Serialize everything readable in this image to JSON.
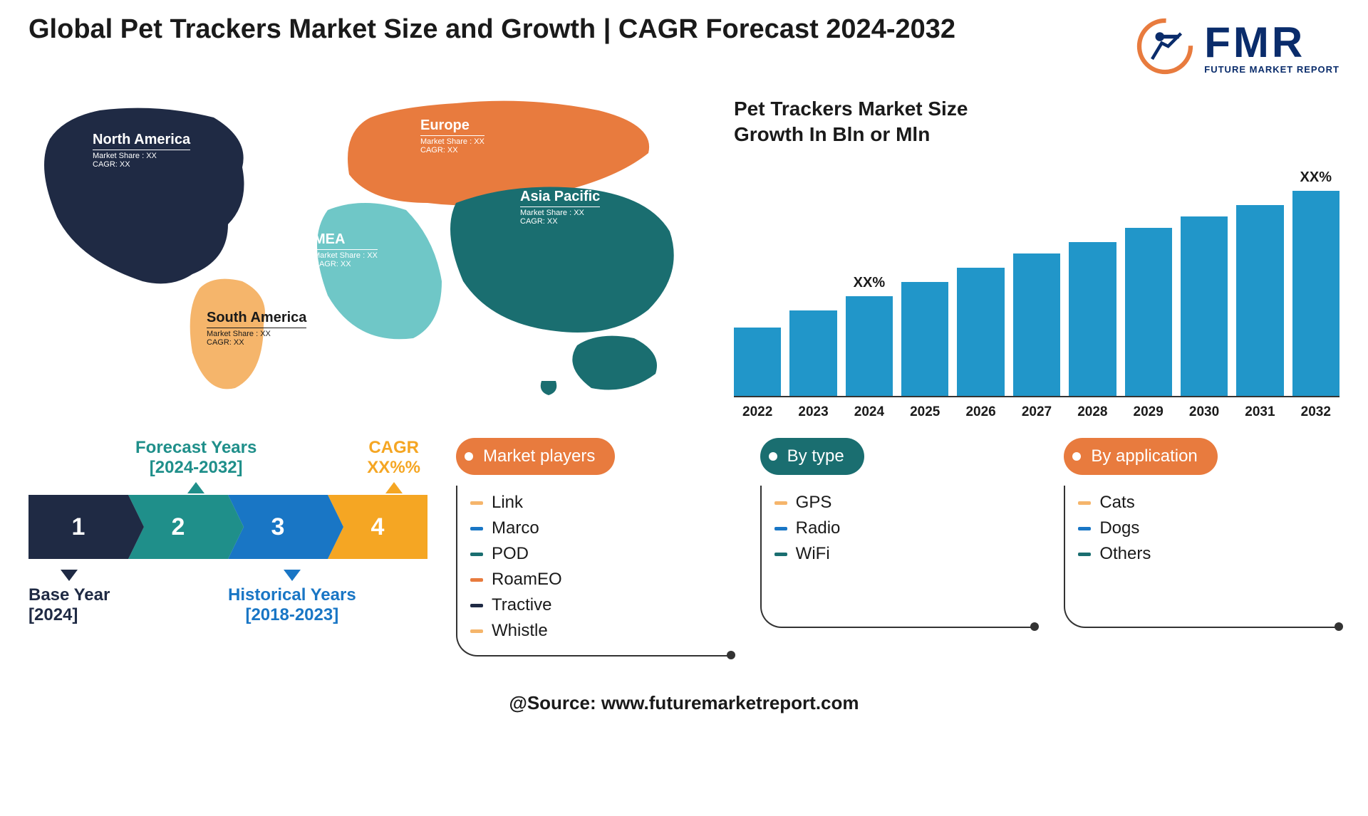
{
  "title": "Global Pet Trackers  Market Size and Growth | CAGR Forecast 2024-2032",
  "logo": {
    "fmr": "FMR",
    "sub": "FUTURE MARKET REPORT"
  },
  "map": {
    "regions": {
      "na": {
        "name": "North America",
        "ms": "Market Share : XX",
        "cagr": "CAGR: XX",
        "color": "#1f2a44"
      },
      "sa": {
        "name": "South America",
        "ms": "Market Share : XX",
        "cagr": "CAGR: XX",
        "color": "#f5b56b"
      },
      "eu": {
        "name": "Europe",
        "ms": "Market Share : XX",
        "cagr": "CAGR: XX",
        "color": "#e87b3e"
      },
      "mea": {
        "name": "MEA",
        "ms": "Market Share : XX",
        "cagr": "CAGR: XX",
        "color": "#6fc7c7"
      },
      "ap": {
        "name": "Asia Pacific",
        "ms": "Market Share : XX",
        "cagr": "CAGR: XX",
        "color": "#1a6e70"
      }
    }
  },
  "chart": {
    "title": "Pet Trackers Market Size Growth In Bln or Mln",
    "type": "bar",
    "bar_color": "#2196c9",
    "categories": [
      "2022",
      "2023",
      "2024",
      "2025",
      "2026",
      "2027",
      "2028",
      "2029",
      "2030",
      "2031",
      "2032"
    ],
    "values": [
      120,
      150,
      175,
      200,
      225,
      250,
      270,
      295,
      315,
      335,
      360
    ],
    "ylim": [
      0,
      400
    ],
    "callouts": {
      "2024": "XX%",
      "2032": "XX%"
    }
  },
  "timeline": {
    "forecast": {
      "label": "Forecast Years",
      "range": "[2024-2032]",
      "color": "#1f8f8a"
    },
    "cagr": {
      "label": "CAGR",
      "value": "XX%%",
      "color": "#f5a623"
    },
    "base": {
      "label": "Base Year",
      "range": "[2024]",
      "color": "#1f2a44"
    },
    "hist": {
      "label": "Historical Years",
      "range": "[2018-2023]",
      "color": "#1976c5"
    },
    "steps": [
      {
        "n": "1",
        "color": "#1f2a44"
      },
      {
        "n": "2",
        "color": "#1f8f8a"
      },
      {
        "n": "3",
        "color": "#1976c5"
      },
      {
        "n": "4",
        "color": "#f5a623"
      }
    ]
  },
  "categories": [
    {
      "title": "Market players",
      "header_color": "#e87b3e",
      "items": [
        {
          "label": "Link",
          "tick": "#f5b56b"
        },
        {
          "label": "Marco",
          "tick": "#1976c5"
        },
        {
          "label": "POD",
          "tick": "#1a6e70"
        },
        {
          "label": "RoamEO",
          "tick": "#e87b3e"
        },
        {
          "label": "Tractive",
          "tick": "#1f2a44"
        },
        {
          "label": "Whistle",
          "tick": "#f5b56b"
        }
      ]
    },
    {
      "title": "By type",
      "header_color": "#1a6e70",
      "items": [
        {
          "label": "GPS",
          "tick": "#f5b56b"
        },
        {
          "label": "Radio",
          "tick": "#1976c5"
        },
        {
          "label": "WiFi",
          "tick": "#1a6e70"
        }
      ]
    },
    {
      "title": "By application",
      "header_color": "#e87b3e",
      "items": [
        {
          "label": "Cats",
          "tick": "#f5b56b"
        },
        {
          "label": "Dogs",
          "tick": "#1976c5"
        },
        {
          "label": "Others",
          "tick": "#1a6e70"
        }
      ]
    }
  ],
  "source": "@Source: www.futuremarketreport.com"
}
